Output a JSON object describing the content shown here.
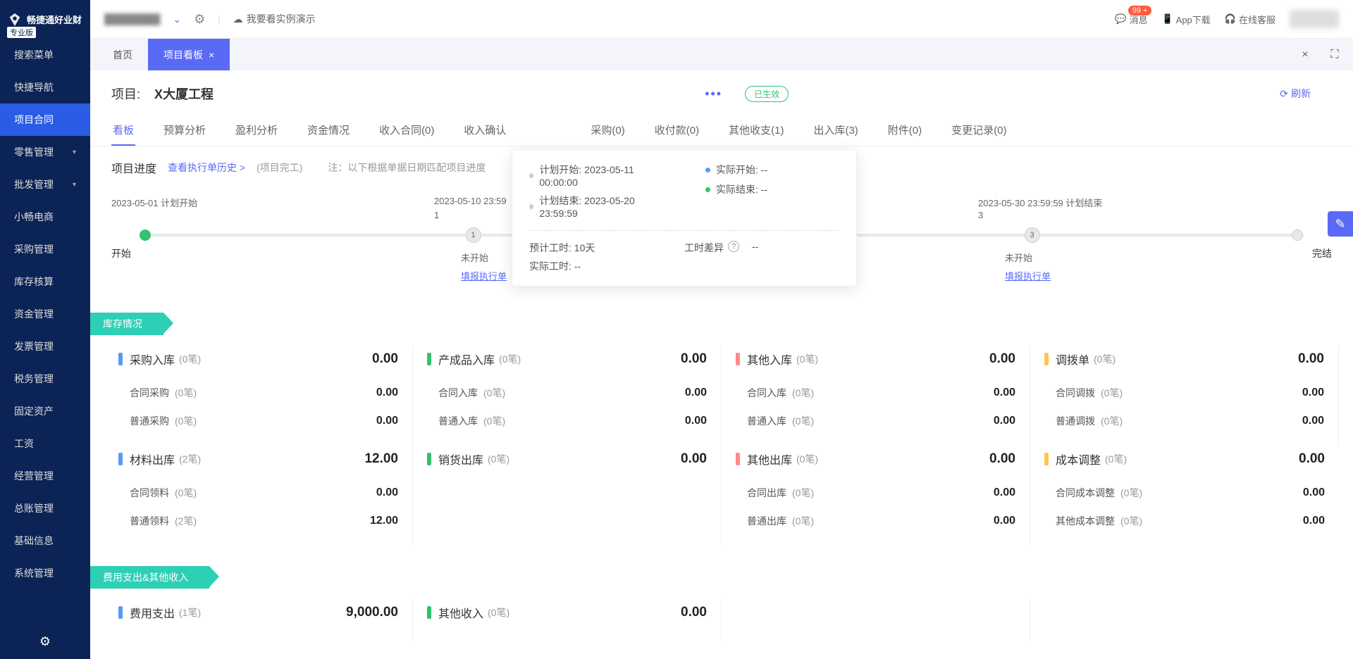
{
  "topbar": {
    "company": "████████",
    "demo": "我要看实例演示",
    "msg": "消息",
    "badge": "99 +",
    "app": "App下载",
    "service": "在线客服"
  },
  "sidebar": {
    "logo_text": "畅捷通好业财",
    "logo_sub": "专业版",
    "items": [
      {
        "label": "搜索菜单",
        "caret": false
      },
      {
        "label": "快捷导航",
        "caret": false
      },
      {
        "label": "项目合同",
        "caret": false,
        "active": true
      },
      {
        "label": "零售管理",
        "caret": true
      },
      {
        "label": "批发管理",
        "caret": true
      },
      {
        "label": "小畅电商",
        "caret": false
      },
      {
        "label": "采购管理",
        "caret": false
      },
      {
        "label": "库存核算",
        "caret": false
      },
      {
        "label": "资金管理",
        "caret": false
      },
      {
        "label": "发票管理",
        "caret": false
      },
      {
        "label": "税务管理",
        "caret": false
      },
      {
        "label": "固定资产",
        "caret": false
      },
      {
        "label": "工资",
        "caret": false
      },
      {
        "label": "经营管理",
        "caret": false
      },
      {
        "label": "总账管理",
        "caret": false
      },
      {
        "label": "基础信息",
        "caret": false
      },
      {
        "label": "系统管理",
        "caret": false
      }
    ]
  },
  "tabs": {
    "home": "首页",
    "board": "项目看板"
  },
  "title": {
    "prefix": "项目:",
    "name": "X大厦工程",
    "status": "已生效",
    "refresh": "刷新"
  },
  "subtabs": [
    "看板",
    "预算分析",
    "盈利分析",
    "资金情况",
    "收入合同(0)",
    "收入确认",
    "",
    "",
    "采购(0)",
    "收付款(0)",
    "其他收支(1)",
    "出入库(3)",
    "附件(0)",
    "变更记录(0)"
  ],
  "progress": {
    "title": "项目进度",
    "history": "查看执行单历史 >",
    "stage": "(项目完工)",
    "note": "注：以下根据单据日期匹配项目进度",
    "labels": {
      "l0": "2023-05-01 计划开始",
      "l1a": "2023-05-10 23:59",
      "l1b": "1",
      "l2b": "2",
      "l3a": "2023-05-30 23:59:59 计划结束",
      "l3b": "3"
    },
    "caps": {
      "start": "开始",
      "end": "完结"
    },
    "subs": {
      "s1": "未开始",
      "s2": "未开始",
      "s3": "未开始"
    },
    "link": "填报执行单"
  },
  "popup": {
    "plan_start": "计划开始: 2023-05-11 00:00:00",
    "plan_end": "计划结束: 2023-05-20 23:59:59",
    "actual_start": "实际开始: --",
    "actual_end": "实际结束: --",
    "est": "预计工时: 10天",
    "actual": "实际工时: --",
    "diff_lbl": "工时差异",
    "diff_val": "--"
  },
  "sections": {
    "inventory": "库存情况",
    "expense": "费用支出&其他收入"
  },
  "inv_cards": [
    {
      "color": "#5b9af5",
      "title": "采购入库",
      "count": "(0笔)",
      "val": "0.00",
      "rows": [
        {
          "name": "合同采购",
          "count": "(0笔)",
          "val": "0.00"
        },
        {
          "name": "普通采购",
          "count": "(0笔)",
          "val": "0.00"
        }
      ]
    },
    {
      "color": "#35c26e",
      "title": "产成品入库",
      "count": "(0笔)",
      "val": "0.00",
      "rows": [
        {
          "name": "合同入库",
          "count": "(0笔)",
          "val": "0.00"
        },
        {
          "name": "普通入库",
          "count": "(0笔)",
          "val": "0.00"
        }
      ]
    },
    {
      "color": "#ff8a8a",
      "title": "其他入库",
      "count": "(0笔)",
      "val": "0.00",
      "rows": [
        {
          "name": "合同入库",
          "count": "(0笔)",
          "val": "0.00"
        },
        {
          "name": "普通入库",
          "count": "(0笔)",
          "val": "0.00"
        }
      ]
    },
    {
      "color": "#ffc44d",
      "title": "调拨单",
      "count": "(0笔)",
      "val": "0.00",
      "rows": [
        {
          "name": "合同调拨",
          "count": "(0笔)",
          "val": "0.00"
        },
        {
          "name": "普通调拨",
          "count": "(0笔)",
          "val": "0.00"
        }
      ]
    },
    {
      "color": "#5b9af5",
      "title": "材料出库",
      "count": "(2笔)",
      "val": "12.00",
      "rows": [
        {
          "name": "合同领料",
          "count": "(0笔)",
          "val": "0.00"
        },
        {
          "name": "普通领料",
          "count": "(2笔)",
          "val": "12.00"
        }
      ]
    },
    {
      "color": "#35c26e",
      "title": "销货出库",
      "count": "(0笔)",
      "val": "0.00",
      "rows": []
    },
    {
      "color": "#ff8a8a",
      "title": "其他出库",
      "count": "(0笔)",
      "val": "0.00",
      "rows": [
        {
          "name": "合同出库",
          "count": "(0笔)",
          "val": "0.00"
        },
        {
          "name": "普通出库",
          "count": "(0笔)",
          "val": "0.00"
        }
      ]
    },
    {
      "color": "#ffc44d",
      "title": "成本调整",
      "count": "(0笔)",
      "val": "0.00",
      "rows": [
        {
          "name": "合同成本调整",
          "count": "(0笔)",
          "val": "0.00"
        },
        {
          "name": "其他成本调整",
          "count": "(0笔)",
          "val": "0.00"
        }
      ]
    }
  ],
  "exp_cards": [
    {
      "color": "#5b9af5",
      "title": "费用支出",
      "count": "(1笔)",
      "val": "9,000.00"
    },
    {
      "color": "#35c26e",
      "title": "其他收入",
      "count": "(0笔)",
      "val": "0.00"
    }
  ]
}
